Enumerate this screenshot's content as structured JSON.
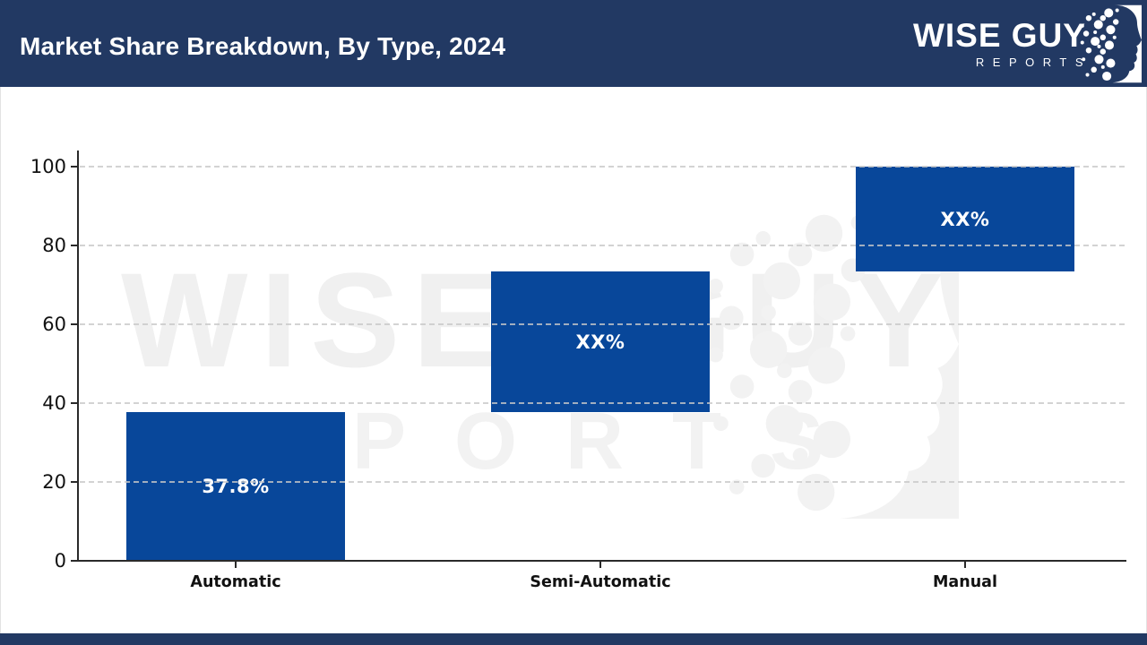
{
  "header": {
    "title": "Market Share Breakdown, By Type, 2024",
    "logo": {
      "line1": "WISE GUY",
      "line2": "REPORTS"
    }
  },
  "watermark": {
    "line1": "WISE GUY",
    "line2": "REPORTS"
  },
  "colors": {
    "header_bg": "#223963",
    "footer_bg": "#223963",
    "bar": "#08479a",
    "bar_label": "#ffffff",
    "gridline": "#d6d6d6",
    "axis": "#2a2a2a",
    "watermark": "#f0f0f0"
  },
  "chart_data": {
    "type": "bar",
    "variant": "floating-waterfall",
    "title": "Market Share Breakdown, By Type, 2024",
    "categories": [
      "Automatic",
      "Semi-Automatic",
      "Manual"
    ],
    "series": [
      {
        "category": "Automatic",
        "start": 0,
        "end": 37.8,
        "label": "37.8%"
      },
      {
        "category": "Semi-Automatic",
        "start": 37.8,
        "end": 73.3,
        "label": "XX%"
      },
      {
        "category": "Manual",
        "start": 73.3,
        "end": 100,
        "label": "XX%"
      }
    ],
    "yticks": [
      0,
      20,
      40,
      60,
      80,
      100
    ],
    "ylim": [
      0,
      100
    ],
    "xlabel": "",
    "ylabel": "",
    "grid": {
      "horizontal": true,
      "style": "dashed",
      "drawn_over_bars": true
    },
    "legend": "none"
  }
}
